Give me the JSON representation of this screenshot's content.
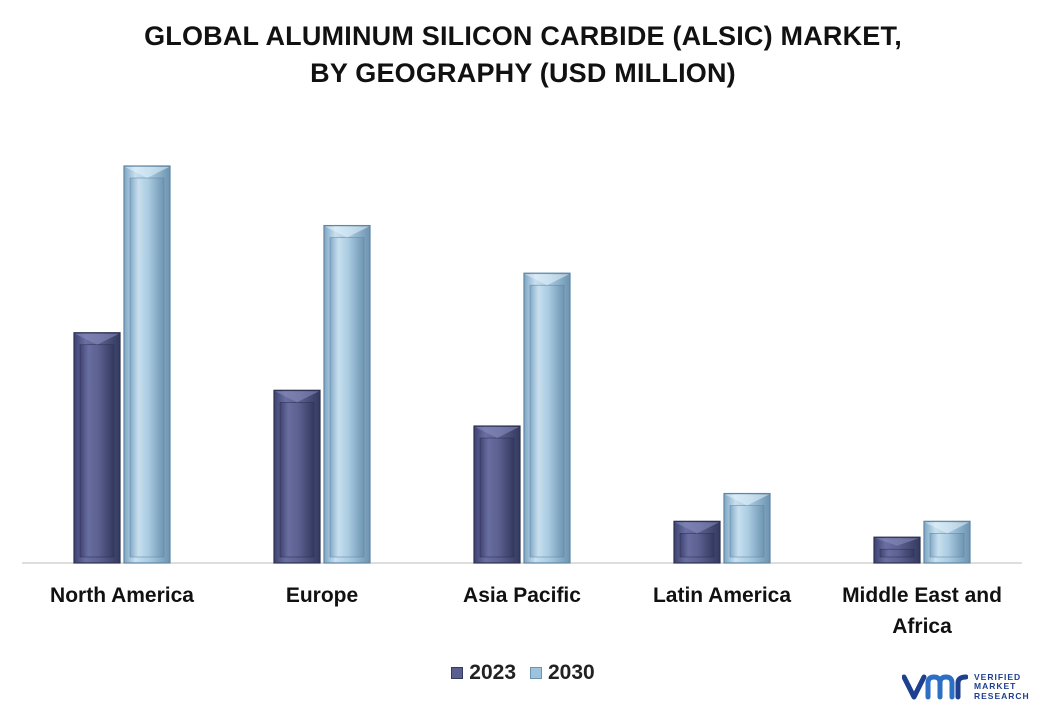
{
  "chart_data": {
    "type": "bar",
    "title_lines": [
      "GLOBAL ALUMINUM SILICON CARBIDE (ALSIC) MARKET,",
      "BY GEOGRAPHY (USD MILLION)"
    ],
    "categories": [
      [
        "North America"
      ],
      [
        "Europe"
      ],
      [
        "Asia Pacific"
      ],
      [
        "Latin America"
      ],
      [
        "Middle East and",
        "Africa"
      ]
    ],
    "series": [
      {
        "name": "2023",
        "values": [
          58,
          43.5,
          34.5,
          10.5,
          6.5
        ],
        "color": "#5a5f8f"
      },
      {
        "name": "2030",
        "values": [
          100,
          85,
          73,
          17.5,
          10.5
        ],
        "color": "#9ec3dc"
      }
    ],
    "ylim": [
      0,
      100
    ],
    "grid": false,
    "legend_position": "bottom"
  },
  "brand": {
    "mark": "vmr",
    "lines": [
      "VERIFIED",
      "MARKET",
      "RESEARCH"
    ],
    "registered": "®",
    "color": "#1f3f8f"
  }
}
